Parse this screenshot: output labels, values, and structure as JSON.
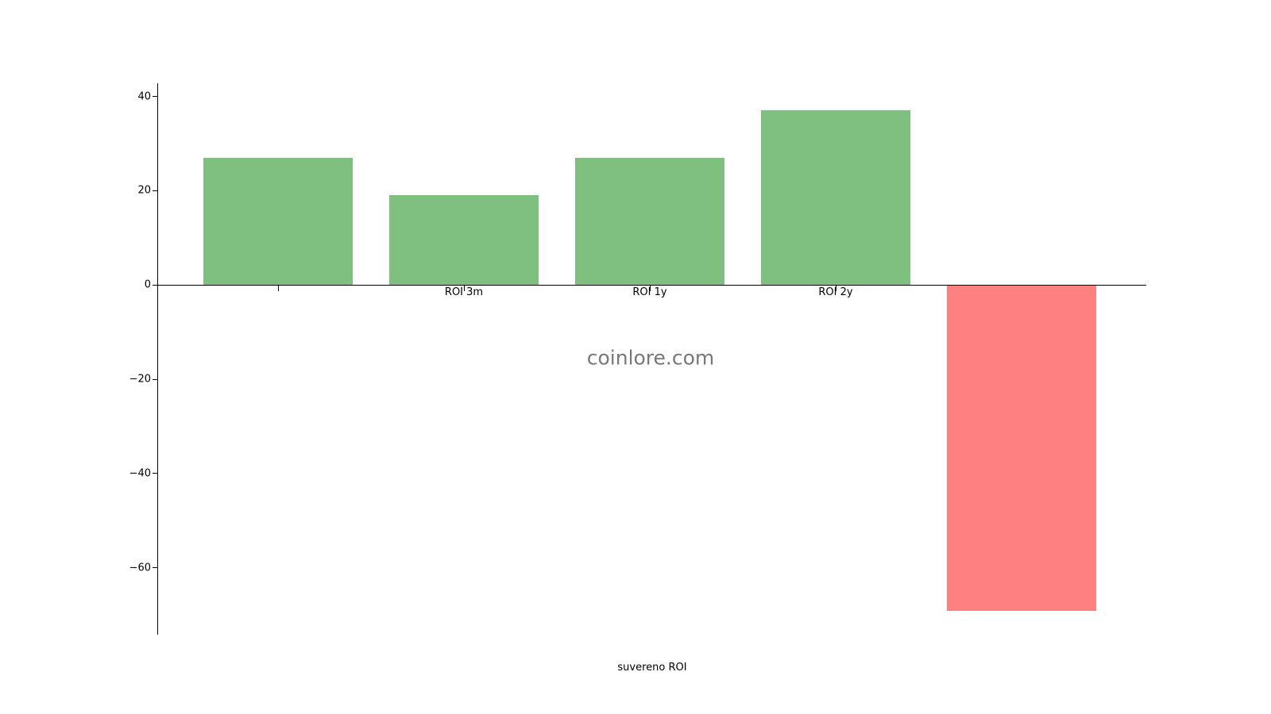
{
  "watermark": {
    "text": "coinlore.com",
    "color": "#787878"
  },
  "chart_data": {
    "type": "bar",
    "title": "",
    "xlabel": "suvereno ROI",
    "ylabel": "",
    "categories": [
      "",
      "ROI 3m",
      "ROI 1y",
      "ROI 2y",
      ""
    ],
    "values": [
      27,
      19,
      27,
      37,
      -69
    ],
    "positive_color": "#7fbf7f",
    "negative_color": "#ff8080",
    "y_ticks": [
      40,
      20,
      0,
      -20,
      -40,
      -60
    ],
    "ylim": [
      -74.2,
      42.8
    ],
    "grid": false,
    "legend": false,
    "axis_color": "#000000",
    "note": "x tick under first bar has no visible label; tick and label of last bar are covered by the negative bar"
  }
}
